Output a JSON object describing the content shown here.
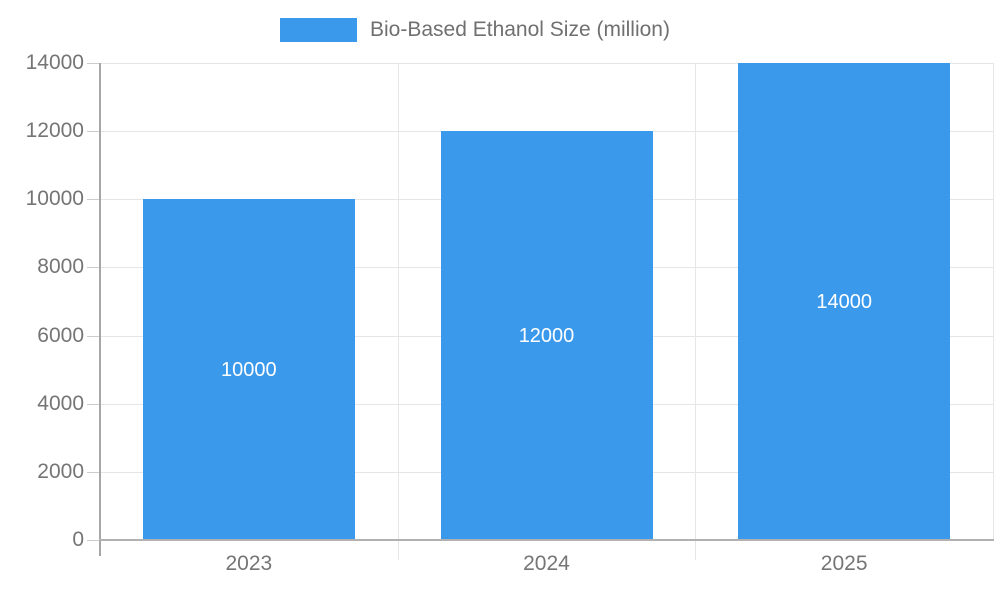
{
  "legend": {
    "label": "Bio-Based Ethanol Size (million)",
    "swatch_color": "#3B99EC"
  },
  "chart_data": {
    "type": "bar",
    "title": "Bio-Based Ethanol Size (million)",
    "categories": [
      "2023",
      "2024",
      "2025"
    ],
    "values": [
      10000,
      12000,
      14000
    ],
    "value_labels": [
      "10000",
      "12000",
      "14000"
    ],
    "xlabel": "",
    "ylabel": "",
    "ylim": [
      0,
      14000
    ],
    "yticks": [
      0,
      2000,
      4000,
      6000,
      8000,
      10000,
      12000,
      14000
    ],
    "grid": true,
    "legend_position": "top-center",
    "colors": {
      "bar": "#3B99EC",
      "value_label": "#FFFFFF",
      "axis_text": "#757575",
      "legend_text": "#707070",
      "gridline": "#E6E6E6",
      "tick": "#CCCCCC",
      "y_axis_line": "#A6A6A6",
      "x_axis_line": "#B1B1B1"
    }
  }
}
